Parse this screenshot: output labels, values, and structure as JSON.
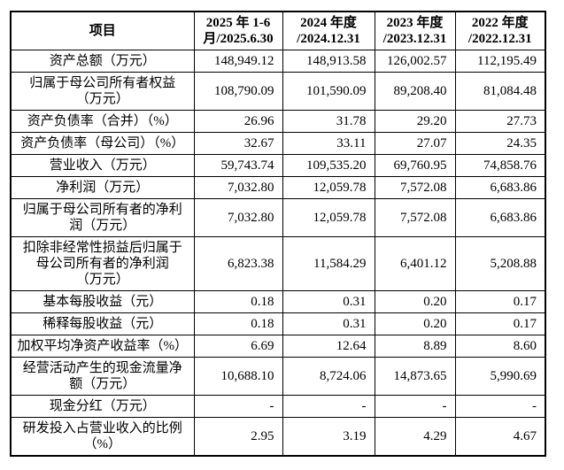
{
  "table": {
    "colors": {
      "border": "#000000",
      "text": "#000000",
      "background": "#ffffff"
    },
    "header": {
      "item_label": "项目",
      "periods": [
        "2025 年 1-6\n月/2025.6.30",
        "2024 年度\n/2024.12.31",
        "2023 年度\n/2023.12.31",
        "2022 年度\n/2022.12.31"
      ]
    },
    "rows": [
      {
        "label": "资产总额（万元）",
        "values": [
          "148,949.12",
          "148,913.58",
          "126,002.57",
          "112,195.49"
        ]
      },
      {
        "label": "归属于母公司所有者权益\n（万元）",
        "values": [
          "108,790.09",
          "101,590.09",
          "89,208.40",
          "81,084.48"
        ]
      },
      {
        "label": "资产负债率（合并）（%）",
        "values": [
          "26.96",
          "31.78",
          "29.20",
          "27.73"
        ]
      },
      {
        "label": "资产负债率（母公司）（%）",
        "values": [
          "32.67",
          "33.11",
          "27.07",
          "24.35"
        ]
      },
      {
        "label": "营业收入（万元）",
        "values": [
          "59,743.74",
          "109,535.20",
          "69,760.95",
          "74,858.76"
        ]
      },
      {
        "label": "净利润（万元）",
        "values": [
          "7,032.80",
          "12,059.78",
          "7,572.08",
          "6,683.86"
        ]
      },
      {
        "label": "归属于母公司所有者的净利\n润（万元）",
        "values": [
          "7,032.80",
          "12,059.78",
          "7,572.08",
          "6,683.86"
        ]
      },
      {
        "label": "扣除非经常性损益后归属于\n母公司所有者的净利润\n（万元）",
        "values": [
          "6,823.38",
          "11,584.29",
          "6,401.12",
          "5,208.88"
        ]
      },
      {
        "label": "基本每股收益（元）",
        "values": [
          "0.18",
          "0.31",
          "0.20",
          "0.17"
        ]
      },
      {
        "label": "稀释每股收益（元）",
        "values": [
          "0.18",
          "0.31",
          "0.20",
          "0.17"
        ]
      },
      {
        "label": "加权平均净资产收益率（%）",
        "values": [
          "6.69",
          "12.64",
          "8.89",
          "8.60"
        ]
      },
      {
        "label": "经营活动产生的现金流量净\n额（万元）",
        "values": [
          "10,688.10",
          "8,724.06",
          "14,873.65",
          "5,990.69"
        ]
      },
      {
        "label": "现金分红（万元）",
        "values": [
          "-",
          "-",
          "-",
          "-"
        ]
      },
      {
        "label": "研发投入占营业收入的比例\n（%）",
        "values": [
          "2.95",
          "3.19",
          "4.29",
          "4.67"
        ]
      }
    ]
  }
}
